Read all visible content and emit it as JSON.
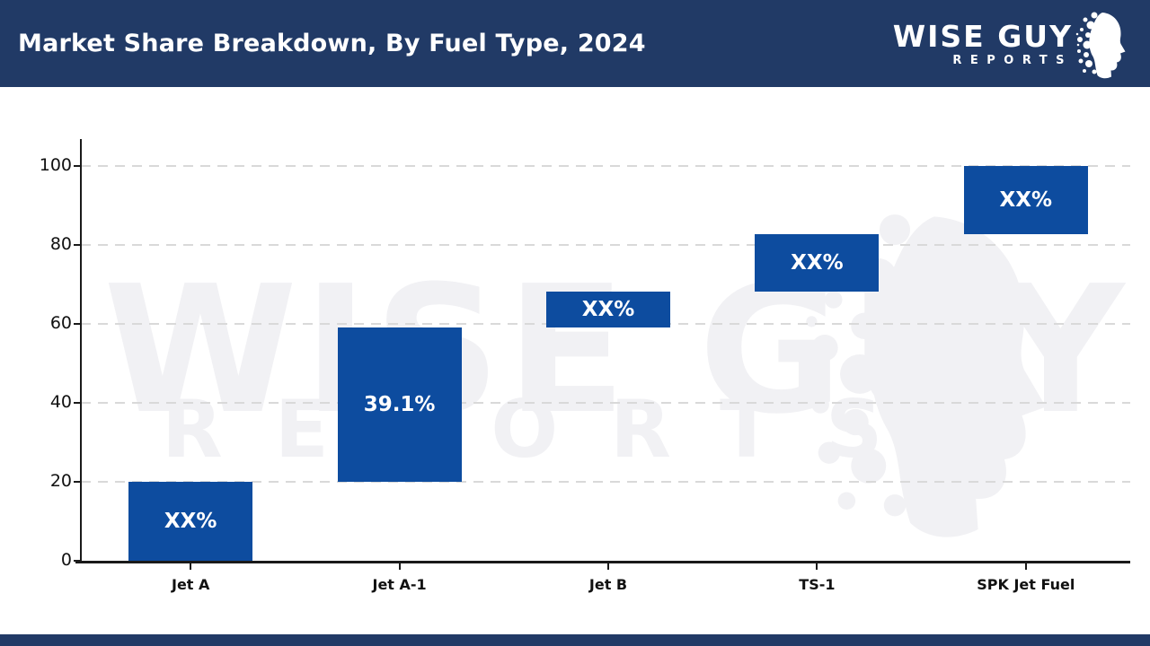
{
  "header": {
    "title": "Market Share Breakdown, By Fuel Type, 2024",
    "brand": {
      "line1": "WISE GUY",
      "line2": "REPORTS"
    }
  },
  "watermark": {
    "line1": "WISE GUY",
    "line2": "REPORTS"
  },
  "footer": {},
  "chart_data": {
    "type": "bar",
    "subtype": "waterfall",
    "title": "Market Share Breakdown, By Fuel Type, 2024",
    "categories": [
      "Jet A",
      "Jet A-1",
      "Jet B",
      "TS-1",
      "SPK Jet Fuel"
    ],
    "segments": [
      {
        "category": "Jet A",
        "start": 0,
        "end": 20,
        "value_label": "XX%"
      },
      {
        "category": "Jet A-1",
        "start": 20,
        "end": 59.1,
        "value_label": "39.1%"
      },
      {
        "category": "Jet B",
        "start": 59.1,
        "end": 68.2,
        "value_label": "XX%"
      },
      {
        "category": "TS-1",
        "start": 68.2,
        "end": 82.7,
        "value_label": "XX%"
      },
      {
        "category": "SPK Jet Fuel",
        "start": 82.7,
        "end": 100,
        "value_label": "XX%"
      }
    ],
    "yticks": [
      0,
      20,
      40,
      60,
      80,
      100
    ],
    "ylim": [
      0,
      100
    ],
    "xlabel": "",
    "ylabel": "",
    "grid": "horizontal-dashed",
    "legend_position": "none",
    "bar_color": "#0d4c9f",
    "bar_label_color": "#ffffff",
    "axis_color": "#1a1a1a",
    "gridline_color": "#d9d9d9"
  },
  "colors": {
    "header_bg": "#213a66",
    "footer_bg": "#213a66",
    "title_text": "#ffffff",
    "watermark": "#f1f1f4"
  }
}
